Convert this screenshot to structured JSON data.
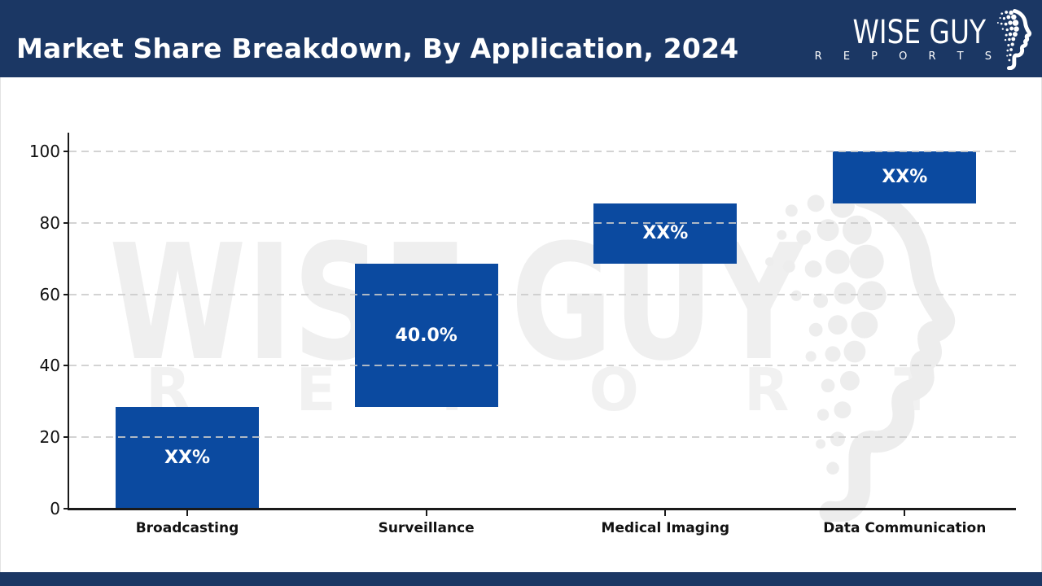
{
  "header": {
    "title": "Market Share Breakdown, By Application, 2024",
    "logo": {
      "name": "WISE GUY",
      "tagline": "R E P O R T S"
    }
  },
  "watermark": {
    "line1": "WISE GUY",
    "line2": "R E P O R T S"
  },
  "chart_data": {
    "type": "bar",
    "subtype": "floating-segment-waterfall",
    "title": "Market Share Breakdown, By Application, 2024",
    "categories": [
      "Broadcasting",
      "Surveillance",
      "Medical Imaging",
      "Data Communication"
    ],
    "bars": [
      {
        "category": "Broadcasting",
        "start": 0,
        "end": 28.5,
        "label": "XX%"
      },
      {
        "category": "Surveillance",
        "start": 28.5,
        "end": 68.5,
        "label": "40.0%"
      },
      {
        "category": "Medical Imaging",
        "start": 68.5,
        "end": 85.5,
        "label": "XX%"
      },
      {
        "category": "Data Communication",
        "start": 85.5,
        "end": 100,
        "label": "XX%"
      }
    ],
    "xlabel": "",
    "ylabel": "",
    "ylim": [
      0,
      105
    ],
    "yticks": [
      0,
      20,
      40,
      60,
      80,
      100
    ],
    "grid": "horizontal-dashed",
    "legend": "none"
  },
  "colors": {
    "header_bg": "#1b3764",
    "footer_bg": "#1b3764",
    "bar": "#0b4aa0",
    "axis": "#1a1a1a",
    "grid": "#cbcbcb",
    "watermark": "#efefef"
  }
}
